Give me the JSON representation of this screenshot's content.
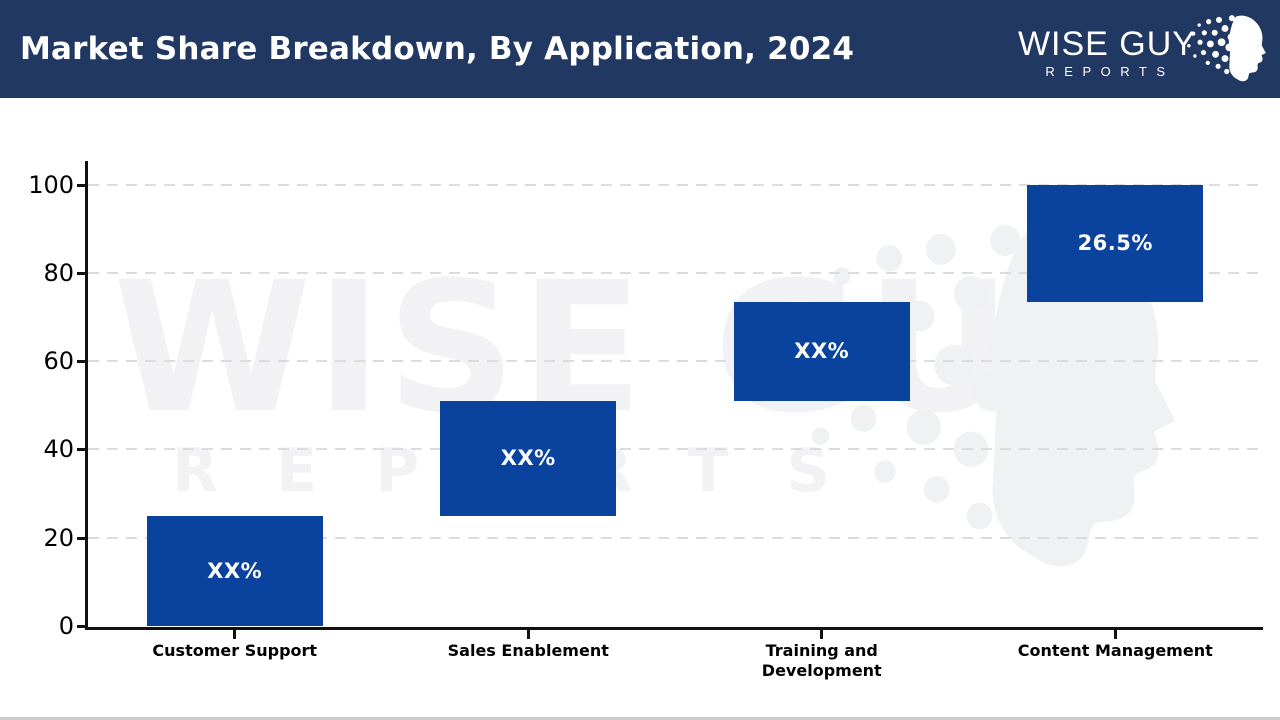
{
  "header": {
    "title": "Market Share Breakdown, By Application, 2024",
    "bg_color": "#213863",
    "logo": {
      "wordmark": "WISE GUY",
      "subtext": "REPORTS"
    }
  },
  "watermark": {
    "wordmark": "WISE GUY",
    "subtext": "REPORTS"
  },
  "chart_data": {
    "type": "bar",
    "variant": "floating-segment-waterfall",
    "title": "Market Share Breakdown, By Application, 2024",
    "categories": [
      "Customer Support",
      "Sales Enablement",
      "Training and Development",
      "Content Management"
    ],
    "bars": [
      {
        "category": "Customer Support",
        "start": 0,
        "end": 25,
        "value_label": "XX%"
      },
      {
        "category": "Sales Enablement",
        "start": 25,
        "end": 51,
        "value_label": "XX%"
      },
      {
        "category": "Training and Development",
        "start": 51,
        "end": 73.5,
        "value_label": "XX%"
      },
      {
        "category": "Content Management",
        "start": 73.5,
        "end": 100,
        "value_label": "26.5%"
      }
    ],
    "xlabel": "",
    "ylabel": "",
    "ylim": [
      0,
      100
    ],
    "yticks": [
      0,
      20,
      40,
      60,
      80,
      100
    ],
    "grid": {
      "axis": "y",
      "style": "dashed",
      "color": "#dcdcdc"
    },
    "legend": null,
    "bar_color": "#09439d",
    "bar_label_color": "#ffffff",
    "axis_color": "#111111"
  }
}
